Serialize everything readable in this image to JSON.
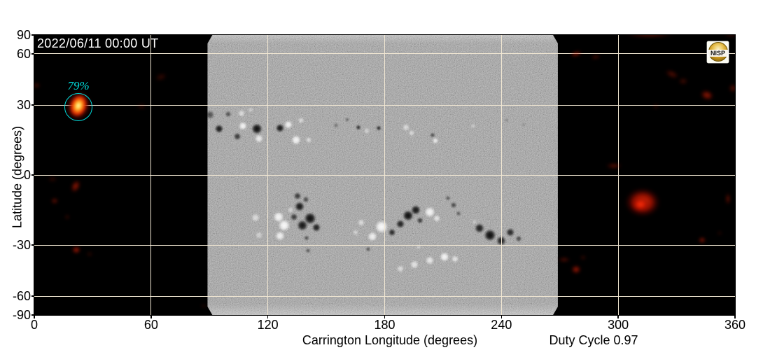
{
  "plot": {
    "timestamp": "2022/06/11 00:00 UT",
    "duty_cycle_label": "Duty Cycle 0.97",
    "xlabel": "Carrington Longitude (degrees)",
    "ylabel": "Latitude (degrees)",
    "logo_text": "NISP",
    "annotation_label": "79%"
  },
  "chart_data": {
    "type": "heatmap",
    "title": "2022/06/11 00:00 UT",
    "xlabel": "Carrington Longitude (degrees)",
    "ylabel": "Latitude (degrees)",
    "xlim": [
      0,
      360
    ],
    "ylim": [
      -90,
      90
    ],
    "projection": "sine-latitude",
    "x_ticks": [
      0,
      60,
      120,
      180,
      240,
      300,
      360
    ],
    "y_ticks": [
      90,
      60,
      30,
      0,
      -30,
      -60,
      -90
    ],
    "grid": {
      "lons": [
        60,
        120,
        180,
        240,
        300
      ],
      "lats": [
        -60,
        -30,
        0,
        30,
        60
      ]
    },
    "duty_cycle": 0.97,
    "annotation": {
      "label": "79%",
      "lon": 22.7,
      "lat": 29.0,
      "radius_px": 20
    },
    "frontside_window": {
      "lon_min": 89,
      "lon_max": 269
    },
    "colors": {
      "farside_background": "#000000",
      "grid_line": "#f0e6d2",
      "annotation": "#00dcdc",
      "frontside_gray": "#9c9c9c",
      "farside_activity": "#cc1600"
    },
    "farside_blobs_columns": [
      "lon",
      "lat",
      "rx_px",
      "ry_px",
      "rot_deg",
      "intensity",
      "style"
    ],
    "farside_blobs": [
      [
        22.7,
        29.7,
        20,
        24,
        15,
        0.7
      ],
      [
        22.7,
        29.7,
        14,
        19,
        18,
        1.0,
        "bright"
      ],
      [
        1.1,
        39.8,
        7,
        5,
        0,
        0.22
      ],
      [
        65.1,
        44.4,
        10,
        6,
        -20,
        0.18
      ],
      [
        55.0,
        29.3,
        8,
        5,
        0,
        0.15
      ],
      [
        21.2,
        -4.6,
        7,
        11,
        28,
        0.5
      ],
      [
        10.4,
        -10.7,
        6,
        5,
        0,
        0.38
      ],
      [
        16.9,
        -17.5,
        4,
        4,
        0,
        0.22
      ],
      [
        9.4,
        -1.7,
        8,
        5,
        0,
        0.15
      ],
      [
        21.6,
        -32.3,
        7,
        6,
        0,
        0.6
      ],
      [
        28.4,
        -34.4,
        5,
        4,
        0,
        0.18
      ],
      [
        87.0,
        -69.2,
        5,
        3,
        0,
        0.15
      ],
      [
        278.3,
        59.9,
        10,
        4,
        -15,
        0.5
      ],
      [
        288.4,
        57.2,
        8,
        3.5,
        -10,
        0.28
      ],
      [
        316.0,
        87.0,
        40,
        4,
        0,
        0.3
      ],
      [
        358.0,
        88.0,
        12,
        3,
        0,
        0.22
      ],
      [
        327.6,
        46.1,
        12,
        6,
        25,
        0.28
      ],
      [
        333.3,
        42.1,
        8,
        6,
        0,
        0.22
      ],
      [
        345.6,
        34.8,
        11,
        8,
        20,
        0.5
      ],
      [
        359.0,
        38.3,
        7,
        7,
        0,
        0.3
      ],
      [
        319.3,
        29.3,
        5,
        5,
        0,
        0.15
      ],
      [
        297.7,
        3.7,
        13,
        5,
        0,
        0.3
      ],
      [
        312.4,
        -11.2,
        28,
        23,
        0,
        0.8
      ],
      [
        311.3,
        -12.2,
        14,
        11,
        0,
        1.0
      ],
      [
        356.3,
        -9.8,
        4,
        10,
        0,
        0.35
      ],
      [
        343.0,
        -27.7,
        6,
        5,
        0,
        0.5
      ],
      [
        352.0,
        -24.5,
        4,
        4,
        0,
        0.15
      ],
      [
        272.2,
        -37.2,
        10,
        4,
        0,
        0.3
      ],
      [
        278.3,
        -42.5,
        8,
        7,
        0,
        0.55
      ],
      [
        282.0,
        -36.3,
        5,
        4,
        0,
        0.2
      ]
    ],
    "frontside_regions_columns": [
      "lon",
      "lat",
      "r_px",
      "polarity",
      "intensity"
    ],
    "frontside_regions": [
      [
        90.3,
        25.5,
        7,
        "b",
        0.55
      ],
      [
        94.9,
        19.3,
        7,
        "b",
        0.9
      ],
      [
        99.6,
        25.8,
        5,
        "b",
        0.55
      ],
      [
        104.3,
        16.0,
        6,
        "b",
        0.7
      ],
      [
        114.4,
        19.3,
        9,
        "b",
        0.95
      ],
      [
        126.2,
        19.6,
        7,
        "b",
        0.9
      ],
      [
        155.0,
        20.8,
        4,
        "b",
        0.35
      ],
      [
        106.4,
        26.1,
        6,
        "w",
        0.6
      ],
      [
        107.2,
        20.5,
        7,
        "w",
        0.9
      ],
      [
        111.1,
        27.7,
        4,
        "w",
        0.5
      ],
      [
        115.4,
        15.1,
        7,
        "w",
        0.8
      ],
      [
        130.5,
        21.1,
        7,
        "w",
        0.85
      ],
      [
        134.5,
        14.5,
        8,
        "w",
        0.9
      ],
      [
        140.9,
        14.5,
        5,
        "w",
        0.6
      ],
      [
        137.0,
        23.0,
        5,
        "w",
        0.6
      ],
      [
        160.7,
        23.3,
        3,
        "b",
        0.5
      ],
      [
        166.5,
        19.9,
        4,
        "b",
        0.8
      ],
      [
        176.9,
        19.6,
        4,
        "b",
        0.8
      ],
      [
        204.6,
        16.6,
        4,
        "b",
        0.6
      ],
      [
        170.8,
        18.4,
        5,
        "w",
        0.5
      ],
      [
        190.9,
        19.9,
        6,
        "w",
        0.6
      ],
      [
        193.8,
        17.5,
        5,
        "w",
        0.6
      ],
      [
        206.1,
        14.2,
        5,
        "w",
        0.8
      ],
      [
        225.5,
        20.5,
        4,
        "w",
        0.4
      ],
      [
        242.7,
        23.0,
        3,
        "b",
        0.25
      ],
      [
        251.4,
        21.1,
        3,
        "b",
        0.2
      ],
      [
        113.6,
        -17.8,
        7,
        "w",
        0.6
      ],
      [
        115.4,
        -25.5,
        6,
        "w",
        0.5
      ],
      [
        125.5,
        -17.5,
        9,
        "w",
        0.9
      ],
      [
        128.4,
        -21.1,
        10,
        "w",
        0.95
      ],
      [
        126.2,
        -25.8,
        8,
        "w",
        0.85
      ],
      [
        131.6,
        -14.5,
        5,
        "w",
        0.5
      ],
      [
        136.3,
        -13.0,
        8,
        "b",
        0.9
      ],
      [
        141.7,
        -18.1,
        10,
        "b",
        0.95
      ],
      [
        144.9,
        -22.0,
        7,
        "b",
        0.85
      ],
      [
        137.7,
        -21.1,
        9,
        "b",
        0.9
      ],
      [
        133.4,
        -17.5,
        6,
        "b",
        0.7
      ],
      [
        139.9,
        -26.7,
        4,
        "b",
        0.6
      ],
      [
        140.6,
        -32.7,
        4,
        "b",
        0.5
      ],
      [
        135.2,
        -8.6,
        6,
        "b",
        0.7
      ],
      [
        139.5,
        -10.1,
        5,
        "b",
        0.6
      ],
      [
        178.4,
        -21.7,
        11,
        "w",
        0.95
      ],
      [
        173.7,
        -26.1,
        8,
        "w",
        0.85
      ],
      [
        167.9,
        -19.9,
        6,
        "w",
        0.6
      ],
      [
        165.0,
        -24.2,
        5,
        "w",
        0.5
      ],
      [
        203.2,
        -15.4,
        9,
        "w",
        0.9
      ],
      [
        206.8,
        -18.1,
        6,
        "w",
        0.7
      ],
      [
        183.8,
        -24.2,
        6,
        "b",
        0.8
      ],
      [
        188.1,
        -20.5,
        7,
        "b",
        0.85
      ],
      [
        192.0,
        -16.9,
        9,
        "b",
        0.95
      ],
      [
        196.0,
        -14.5,
        8,
        "b",
        0.9
      ],
      [
        198.2,
        -19.0,
        5,
        "b",
        0.7
      ],
      [
        215.4,
        -12.4,
        5,
        "b",
        0.6
      ],
      [
        217.9,
        -16.0,
        4,
        "b",
        0.5
      ],
      [
        212.5,
        -9.5,
        4,
        "b",
        0.5
      ],
      [
        171.5,
        -32.0,
        4,
        "b",
        0.5
      ],
      [
        188.1,
        -42.1,
        6,
        "w",
        0.6
      ],
      [
        195.3,
        -39.8,
        7,
        "w",
        0.7
      ],
      [
        203.2,
        -37.6,
        7,
        "w",
        0.75
      ],
      [
        210.7,
        -35.8,
        8,
        "w",
        0.9
      ],
      [
        216.1,
        -36.9,
        6,
        "w",
        0.7
      ],
      [
        197.4,
        -31.0,
        4,
        "w",
        0.4
      ],
      [
        228.7,
        -22.3,
        8,
        "b",
        0.85
      ],
      [
        234.1,
        -25.5,
        10,
        "b",
        0.95
      ],
      [
        239.9,
        -28.0,
        8,
        "b",
        0.85
      ],
      [
        244.5,
        -24.2,
        7,
        "b",
        0.8
      ],
      [
        248.9,
        -27.1,
        5,
        "b",
        0.6
      ],
      [
        226.2,
        -19.6,
        4,
        "w",
        0.4
      ]
    ]
  }
}
